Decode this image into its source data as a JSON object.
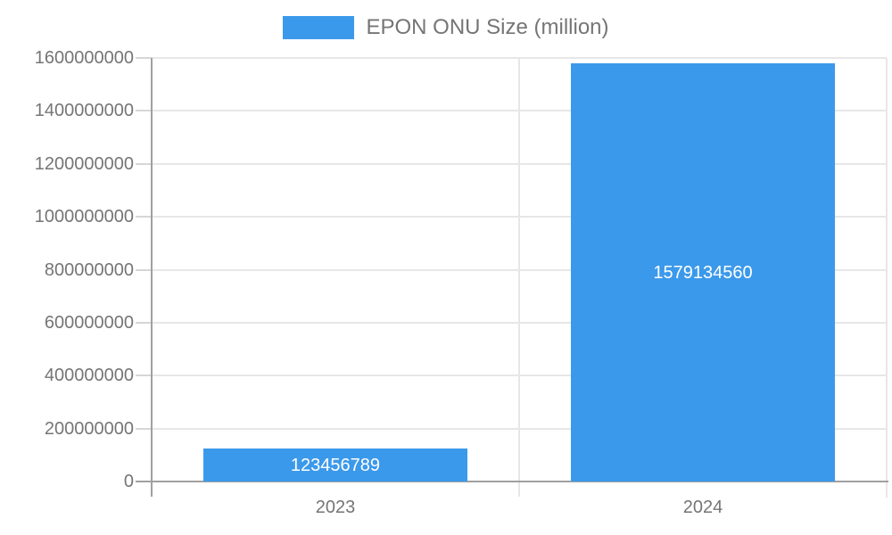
{
  "legend": {
    "label": "EPON ONU Size (million)"
  },
  "chart_data": {
    "type": "bar",
    "title": "EPON ONU Size (million)",
    "categories": [
      "2023",
      "2024"
    ],
    "series": [
      {
        "name": "EPON ONU Size (million)",
        "values": [
          123456789,
          1579134560
        ]
      }
    ],
    "bar_value_labels": [
      "123456789",
      "1579134560"
    ],
    "xlabel": "",
    "ylabel": "",
    "ylim": [
      0,
      1600000000
    ],
    "ytick_interval": 200000000,
    "ytick_labels": [
      "0",
      "200000000",
      "400000000",
      "600000000",
      "800000000",
      "1000000000",
      "1200000000",
      "1400000000",
      "1600000000"
    ],
    "grid": true,
    "legend_position": "top-center",
    "colors": {
      "bar": "#3b99eb",
      "grid": "#e7e7e7",
      "tick": "#d6d6d6",
      "axis": "#a0a0a0",
      "label_text": "#757575",
      "bar_label_text": "#ffffff",
      "background": "#ffffff"
    }
  }
}
